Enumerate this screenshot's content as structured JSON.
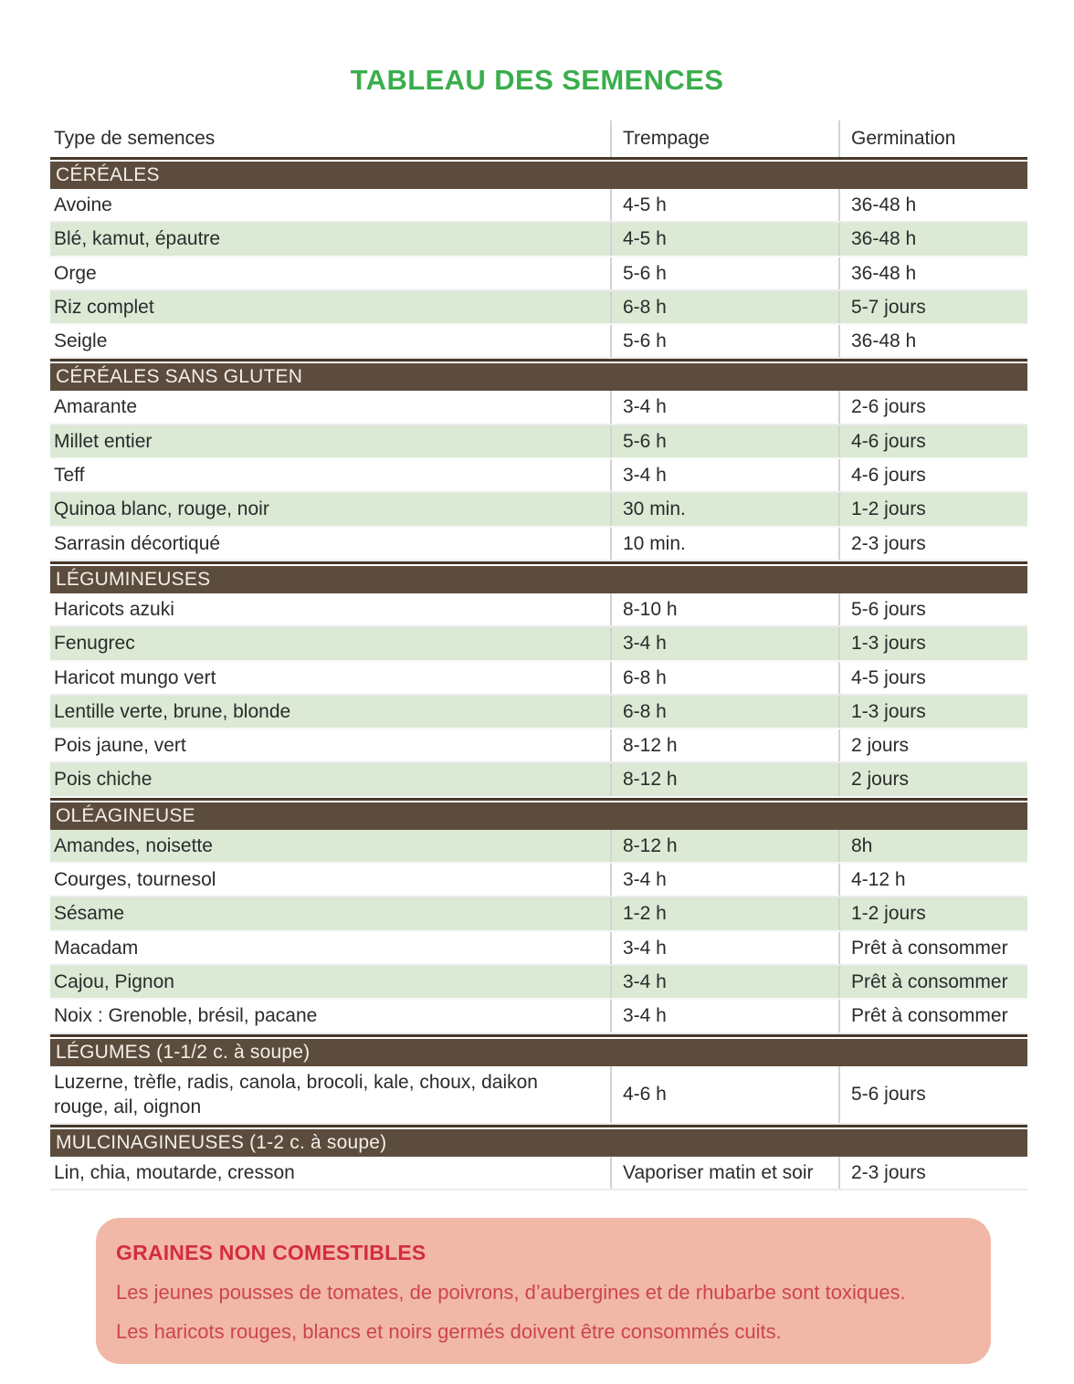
{
  "page": {
    "title": "TABLEAU DES SEMENCES"
  },
  "table": {
    "columns": [
      "Type de semences",
      "Trempage",
      "Germination"
    ],
    "sections": [
      {
        "header": "CÉRÉALES",
        "rows": [
          {
            "name": "Avoine",
            "trempage": "4-5 h",
            "germination": "36-48 h",
            "shaded": false
          },
          {
            "name": "Blé, kamut, épautre",
            "trempage": "4-5 h",
            "germination": "36-48 h",
            "shaded": true
          },
          {
            "name": "Orge",
            "trempage": "5-6 h",
            "germination": "36-48 h",
            "shaded": false
          },
          {
            "name": "Riz complet",
            "trempage": "6-8 h",
            "germination": "5-7 jours",
            "shaded": true
          },
          {
            "name": "Seigle",
            "trempage": "5-6 h",
            "germination": "36-48 h",
            "shaded": false
          }
        ]
      },
      {
        "header": "CÉRÉALES SANS GLUTEN",
        "rows": [
          {
            "name": "Amarante",
            "trempage": "3-4 h",
            "germination": "2-6 jours",
            "shaded": false
          },
          {
            "name": "Millet entier",
            "trempage": "5-6 h",
            "germination": "4-6 jours",
            "shaded": true
          },
          {
            "name": "Teff",
            "trempage": "3-4 h",
            "germination": "4-6 jours",
            "shaded": false
          },
          {
            "name": "Quinoa blanc, rouge, noir",
            "trempage": "30 min.",
            "germination": "1-2 jours",
            "shaded": true
          },
          {
            "name": "Sarrasin décortiqué",
            "trempage": "10 min.",
            "germination": "2-3 jours",
            "shaded": false
          }
        ]
      },
      {
        "header": "LÉGUMINEUSES",
        "rows": [
          {
            "name": "Haricots azuki",
            "trempage": "8-10 h",
            "germination": "5-6 jours",
            "shaded": false
          },
          {
            "name": "Fenugrec",
            "trempage": "3-4 h",
            "germination": "1-3 jours",
            "shaded": true
          },
          {
            "name": "Haricot mungo vert",
            "trempage": "6-8 h",
            "germination": "4-5 jours",
            "shaded": false
          },
          {
            "name": "Lentille verte, brune, blonde",
            "trempage": "6-8 h",
            "germination": "1-3 jours",
            "shaded": true
          },
          {
            "name": "Pois jaune, vert",
            "trempage": "8-12 h",
            "germination": "2 jours",
            "shaded": false
          },
          {
            "name": "Pois chiche",
            "trempage": "8-12 h",
            "germination": "2 jours",
            "shaded": true
          }
        ]
      },
      {
        "header": "OLÉAGINEUSE",
        "rows": [
          {
            "name": "Amandes, noisette",
            "trempage": "8-12 h",
            "germination": "8h",
            "shaded": true
          },
          {
            "name": "Courges, tournesol",
            "trempage": "3-4 h",
            "germination": "4-12 h",
            "shaded": false
          },
          {
            "name": "Sésame",
            "trempage": "1-2 h",
            "germination": "1-2 jours",
            "shaded": true
          },
          {
            "name": "Macadam",
            "trempage": "3-4 h",
            "germination": "Prêt à consommer",
            "shaded": false
          },
          {
            "name": "Cajou, Pignon",
            "trempage": "3-4 h",
            "germination": "Prêt à consommer",
            "shaded": true
          },
          {
            "name": "Noix : Grenoble, brésil, pacane",
            "trempage": "3-4 h",
            "germination": "Prêt à consommer",
            "shaded": false
          }
        ]
      },
      {
        "header": "LÉGUMES (1-1/2 c. à soupe)",
        "rows": [
          {
            "name": "Luzerne, trèfle, radis, canola, brocoli, kale, choux, daikon rouge, ail, oignon",
            "trempage": "4-6 h",
            "germination": "5-6 jours",
            "shaded": false
          }
        ]
      },
      {
        "header": "MULCINAGINEUSES (1-2 c. à soupe)",
        "rows": [
          {
            "name": "Lin, chia, moutarde, cresson",
            "trempage": "Vaporiser matin et soir",
            "germination": "2-3 jours",
            "shaded": false
          }
        ]
      }
    ]
  },
  "warning": {
    "title": "GRAINES NON COMESTIBLES",
    "lines": [
      "Les jeunes pousses de tomates, de poivrons, d’aubergines et de rhubarbe sont toxiques.",
      "Les haricots rouges, blancs et noirs germés doivent être consommés cuits."
    ]
  },
  "colors": {
    "title_green": "#3aae4c",
    "section_brown": "#5c4c3d",
    "row_green": "#dbe9d5",
    "divider_gray": "#d3d3d3",
    "warning_bg": "#f1b8a7",
    "warning_red": "#d32d3e",
    "warning_text_red": "#cd4450"
  }
}
